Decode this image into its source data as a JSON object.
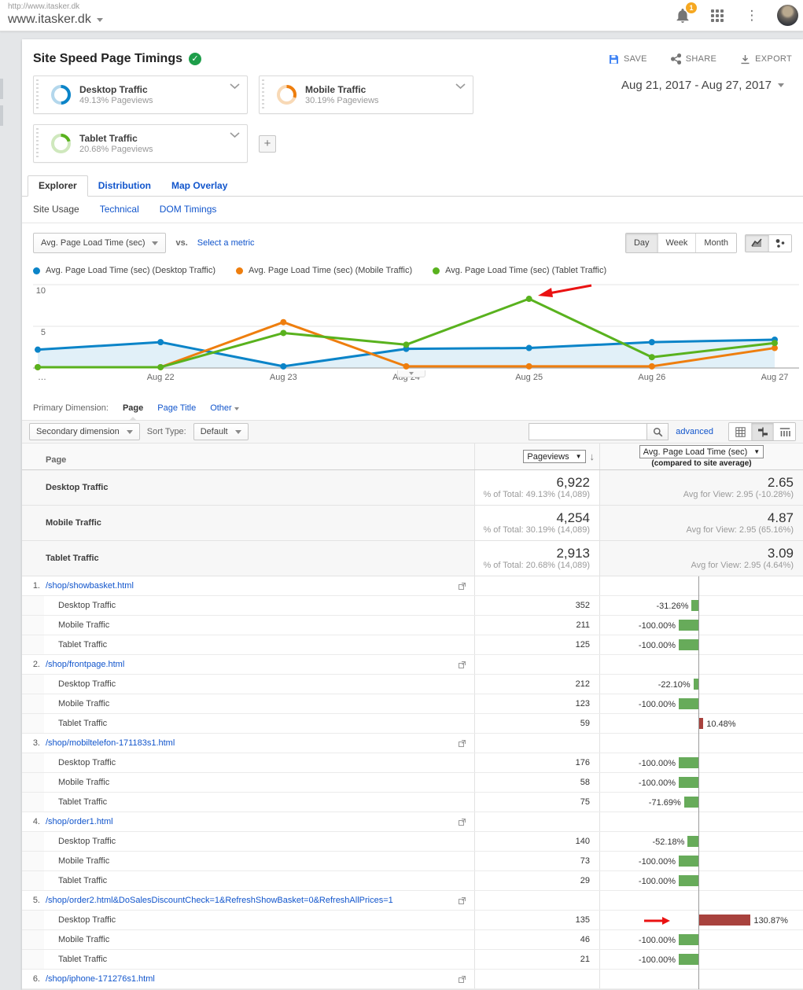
{
  "topbar": {
    "url": "http://www.itasker.dk",
    "site": "www.itasker.dk",
    "notification_count": "1"
  },
  "header": {
    "title": "Site Speed Page Timings",
    "actions": [
      {
        "label": "SAVE"
      },
      {
        "label": "SHARE"
      },
      {
        "label": "EXPORT"
      }
    ],
    "date_range": "Aug 21, 2017 - Aug 27, 2017"
  },
  "segments": {
    "add_label": "+",
    "items": [
      {
        "name": "Desktop Traffic",
        "subtitle": "49.13% Pageviews",
        "pct": 49.13,
        "color": "#0b84c8",
        "color_light": "#b3d7ec"
      },
      {
        "name": "Mobile Traffic",
        "subtitle": "30.19% Pageviews",
        "pct": 30.19,
        "color": "#ee7e0e",
        "color_light": "#f8d9b6"
      },
      {
        "name": "Tablet Traffic",
        "subtitle": "20.68% Pageviews",
        "pct": 20.68,
        "color": "#59b21e",
        "color_light": "#cfe8bd"
      }
    ]
  },
  "tabs": [
    "Explorer",
    "Distribution",
    "Map Overlay"
  ],
  "subtabs": [
    "Site Usage",
    "Technical",
    "DOM Timings"
  ],
  "metric_bar": {
    "metric": "Avg. Page Load Time (sec)",
    "vs": "vs.",
    "select_link": "Select a metric",
    "granularity": [
      "Day",
      "Week",
      "Month"
    ],
    "active_granularity": "Day"
  },
  "chart_data": {
    "type": "line",
    "x": [
      "…",
      "Aug 22",
      "Aug 23",
      "Aug 24",
      "Aug 25",
      "Aug 26",
      "Aug 27"
    ],
    "series": [
      {
        "name": "Avg. Page Load Time (sec) (Desktop Traffic)",
        "color": "#0b84c8",
        "area": true,
        "values": [
          2.2,
          3.1,
          0.2,
          2.3,
          2.4,
          3.1,
          3.4
        ]
      },
      {
        "name": "Avg. Page Load Time (sec) (Mobile Traffic)",
        "color": "#ee7e0e",
        "area": false,
        "values": [
          0.1,
          0.1,
          5.5,
          0.2,
          0.2,
          0.2,
          2.4
        ]
      },
      {
        "name": "Avg. Page Load Time (sec) (Tablet Traffic)",
        "color": "#59b21e",
        "area": false,
        "values": [
          0.1,
          0.1,
          4.2,
          2.8,
          8.3,
          1.3,
          3.0
        ]
      }
    ],
    "ylim": [
      0,
      10
    ],
    "yticks": [
      5,
      10
    ],
    "grid": true,
    "legend_position": "top",
    "annotations": [
      {
        "type": "red-arrow",
        "target": "Tablet Traffic peak on Aug 25"
      },
      {
        "type": "red-arrow",
        "target": "Desktop Traffic +130.87% bar in row 5"
      }
    ]
  },
  "dimension_bar": {
    "label": "Primary Dimension:",
    "active": "Page",
    "option_page_title": "Page Title",
    "other": "Other"
  },
  "toolbar": {
    "secondary_dimension": "Secondary dimension",
    "sort_type_label": "Sort Type:",
    "sort_type_value": "Default",
    "search_value": "",
    "advanced": "advanced"
  },
  "table": {
    "col_page": "Page",
    "col_pageviews": "Pageviews",
    "col_metric": "Avg. Page Load Time (sec)",
    "metric_note": "(compared to site average)",
    "bar_colors": {
      "negative": "#67ab5a",
      "positive": "#a8423d"
    },
    "summary": [
      {
        "label": "Desktop Traffic",
        "pageviews": "6,922",
        "pageviews_note": "% of Total: 49.13% (14,089)",
        "avg": "2.65",
        "avg_note": "Avg for View: 2.95 (-10.28%)"
      },
      {
        "label": "Mobile Traffic",
        "pageviews": "4,254",
        "pageviews_note": "% of Total: 30.19% (14,089)",
        "avg": "4.87",
        "avg_note": "Avg for View: 2.95 (65.16%)"
      },
      {
        "label": "Tablet Traffic",
        "pageviews": "2,913",
        "pageviews_note": "% of Total: 20.68% (14,089)",
        "avg": "3.09",
        "avg_note": "Avg for View: 2.95 (4.64%)"
      }
    ],
    "rows": [
      {
        "num": "1.",
        "page": "/shop/showbasket.html",
        "segments": [
          {
            "label": "Desktop Traffic",
            "pageviews": "352",
            "delta": "-31.26%"
          },
          {
            "label": "Mobile Traffic",
            "pageviews": "211",
            "delta": "-100.00%"
          },
          {
            "label": "Tablet Traffic",
            "pageviews": "125",
            "delta": "-100.00%"
          }
        ]
      },
      {
        "num": "2.",
        "page": "/shop/frontpage.html",
        "segments": [
          {
            "label": "Desktop Traffic",
            "pageviews": "212",
            "delta": "-22.10%"
          },
          {
            "label": "Mobile Traffic",
            "pageviews": "123",
            "delta": "-100.00%"
          },
          {
            "label": "Tablet Traffic",
            "pageviews": "59",
            "delta": "10.48%"
          }
        ]
      },
      {
        "num": "3.",
        "page": "/shop/mobiltelefon-171183s1.html",
        "segments": [
          {
            "label": "Desktop Traffic",
            "pageviews": "176",
            "delta": "-100.00%"
          },
          {
            "label": "Mobile Traffic",
            "pageviews": "58",
            "delta": "-100.00%"
          },
          {
            "label": "Tablet Traffic",
            "pageviews": "75",
            "delta": "-71.69%"
          }
        ]
      },
      {
        "num": "4.",
        "page": "/shop/order1.html",
        "segments": [
          {
            "label": "Desktop Traffic",
            "pageviews": "140",
            "delta": "-52.18%"
          },
          {
            "label": "Mobile Traffic",
            "pageviews": "73",
            "delta": "-100.00%"
          },
          {
            "label": "Tablet Traffic",
            "pageviews": "29",
            "delta": "-100.00%"
          }
        ]
      },
      {
        "num": "5.",
        "page": "/shop/order2.html&DoSalesDiscountCheck=1&RefreshShowBasket=0&RefreshAllPrices=1",
        "segments": [
          {
            "label": "Desktop Traffic",
            "pageviews": "135",
            "delta": "130.87%",
            "arrow": true
          },
          {
            "label": "Mobile Traffic",
            "pageviews": "46",
            "delta": "-100.00%"
          },
          {
            "label": "Tablet Traffic",
            "pageviews": "21",
            "delta": "-100.00%"
          }
        ]
      },
      {
        "num": "6.",
        "page": "/shop/iphone-171276s1.html",
        "segments": []
      }
    ]
  }
}
